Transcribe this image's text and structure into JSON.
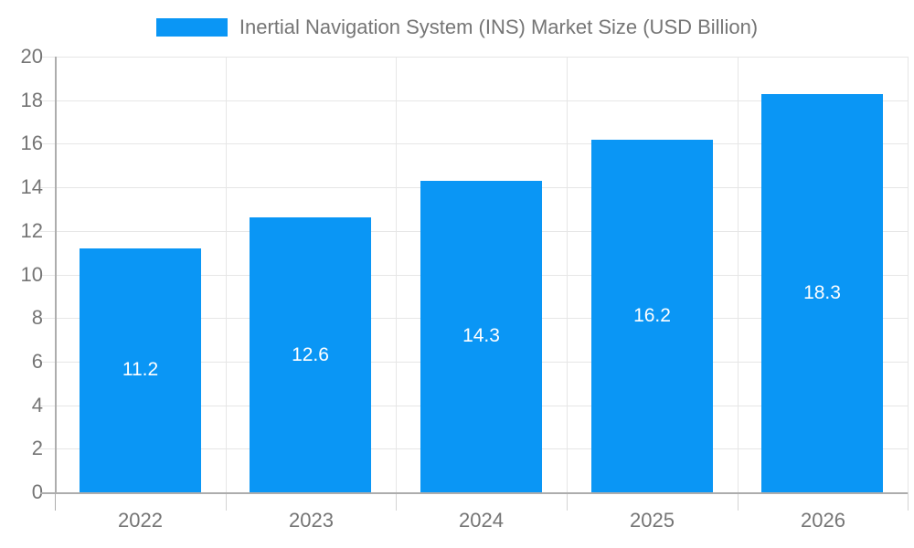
{
  "chart_data": {
    "type": "bar",
    "title": "Inertial Navigation System (INS) Market Size (USD Billion)",
    "legend_position": "top",
    "categories": [
      "2022",
      "2023",
      "2024",
      "2025",
      "2026"
    ],
    "series": [
      {
        "name": "Inertial Navigation System (INS) Market Size (USD Billion)",
        "values": [
          11.2,
          12.6,
          14.3,
          16.2,
          18.3
        ],
        "value_labels": [
          "11.2",
          "12.6",
          "14.3",
          "16.2",
          "18.3"
        ]
      }
    ],
    "xlabel": "",
    "ylabel": "",
    "ylim": [
      0,
      20
    ],
    "yticks": [
      0,
      2,
      4,
      6,
      8,
      10,
      12,
      14,
      16,
      18,
      20
    ],
    "grid": true,
    "colors": {
      "bar": "#0A96F5",
      "grid": "#E6E6E6",
      "axis": "#ADADAD",
      "tick": "#D4D4D4",
      "text": "#757575",
      "value_label": "#FFFFFF",
      "background": "#FFFFFF"
    }
  }
}
